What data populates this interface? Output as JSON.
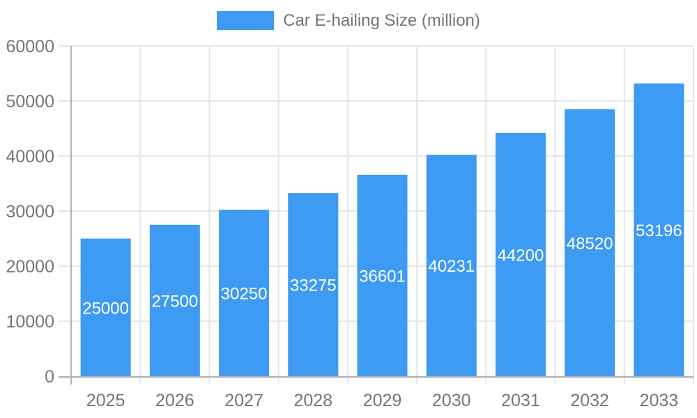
{
  "chart_data": {
    "type": "bar",
    "title": "Car E-hailing Size (million)",
    "legend": {
      "position": "top",
      "label": "Car E-hailing Size (million)"
    },
    "categories": [
      "2025",
      "2026",
      "2027",
      "2028",
      "2029",
      "2030",
      "2031",
      "2032",
      "2033"
    ],
    "series": [
      {
        "name": "Car E-hailing Size (million)",
        "values": [
          25000,
          27500,
          30250,
          33275,
          36601,
          40231,
          44200,
          48520,
          53196
        ],
        "color": "#3D9BF3"
      }
    ],
    "xlabel": "",
    "ylabel": "",
    "ylim": [
      0,
      60000
    ],
    "ytick_step": 10000,
    "grid": true,
    "bar_label_position": "inside-middle",
    "colors": {
      "bar": "#3D9BF3",
      "grid": "#E6E6E6",
      "axis": "#B4B4B4",
      "tick_text": "#757575",
      "bar_label_text": "#FFFFFF"
    }
  }
}
